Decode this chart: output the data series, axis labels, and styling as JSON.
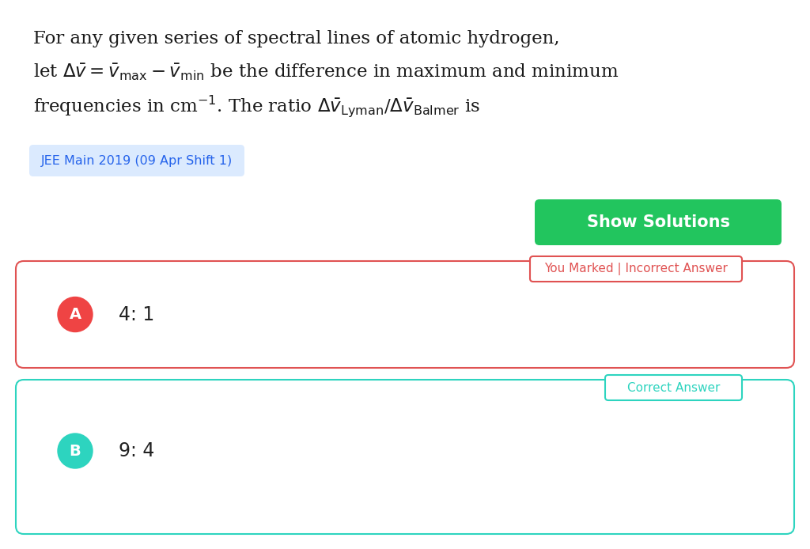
{
  "background_color": "#ffffff",
  "question_line1": "For any given series of spectral lines of atomic hydrogen,",
  "question_line2": "let $\\Delta\\bar{v} = \\bar{v}_{\\mathrm{max}} - \\bar{v}_{\\mathrm{min}}$ be the difference in maximum and minimum",
  "question_line3": "frequencies in cm$^{-1}$. The ratio $\\Delta\\bar{v}_{\\mathrm{Lyman}}$/$\\Delta\\bar{v}_{\\mathrm{Balmer}}$ is",
  "tag_text": "JEE Main 2019 (09 Apr Shift 1)",
  "tag_bg": "#dbeafe",
  "tag_text_color": "#2563eb",
  "show_solutions_text": "Show Solutions",
  "show_solutions_bg": "#22c55e",
  "show_solutions_text_color": "#ffffff",
  "incorrect_label": "You Marked | Incorrect Answer",
  "incorrect_label_color": "#e05252",
  "option_a_circle_color": "#ef4444",
  "option_a_text": "4: 1",
  "option_a_label": "A",
  "correct_label": "Correct Answer",
  "correct_label_color": "#2dd4bf",
  "option_b_circle_color": "#2dd4bf",
  "option_b_text": "9: 4",
  "option_b_label": "B",
  "box_a_border": "#e05252",
  "box_b_border": "#2dd4bf"
}
